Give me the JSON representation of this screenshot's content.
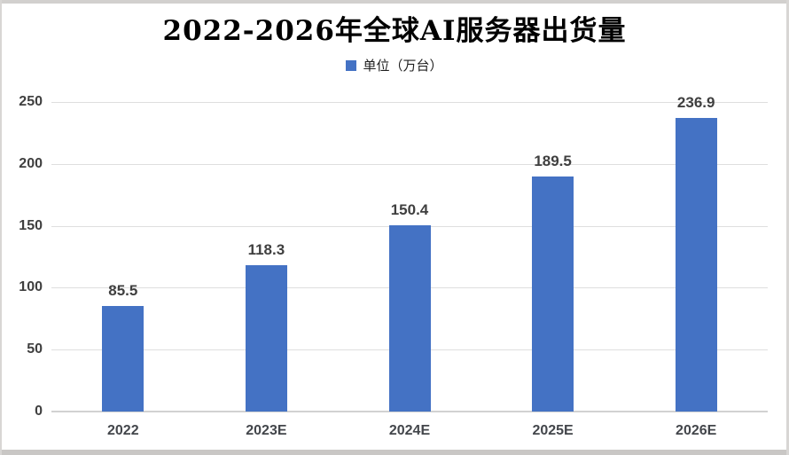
{
  "page": {
    "background": "#ffffff",
    "frame_border_color": "#d2d0ce"
  },
  "chart_data": {
    "type": "bar",
    "title": "2022-2026年全球AI服务器出货量",
    "legend": {
      "label": "单位（万台）",
      "marker_icon": "legend-square-icon",
      "marker_color": "#4472C4",
      "position": "top"
    },
    "categories": [
      "2022",
      "2023E",
      "2024E",
      "2025E",
      "2026E"
    ],
    "values": [
      85.5,
      118.3,
      150.4,
      189.5,
      236.9
    ],
    "value_labels": [
      "85.5",
      "118.3",
      "150.4",
      "189.5",
      "236.9"
    ],
    "bar_color": "#4472C4",
    "xlabel": "",
    "ylabel": "",
    "ylim": [
      0,
      250
    ],
    "ytick_interval": 50,
    "ytick_labels": [
      "0",
      "50",
      "100",
      "150",
      "200",
      "250"
    ],
    "grid": true,
    "gridline_color": "#dedede",
    "axis_line_color": "#d2d2d2",
    "value_label_color": "#3f3f3f",
    "tick_label_color": "#43464b",
    "legend_position": "top-center"
  }
}
